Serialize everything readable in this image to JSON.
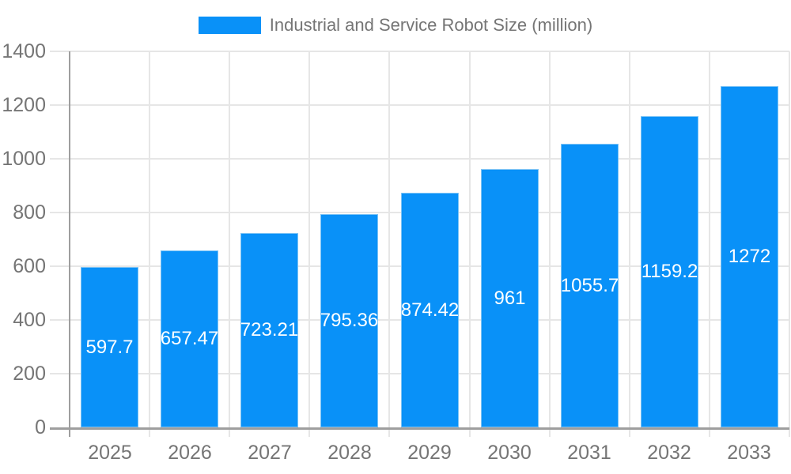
{
  "chart_data": {
    "type": "bar",
    "title": "Industrial and Service Robot Size (million)",
    "categories": [
      "2025",
      "2026",
      "2027",
      "2028",
      "2029",
      "2030",
      "2031",
      "2032",
      "2033"
    ],
    "values": [
      597.7,
      657.47,
      723.21,
      795.36,
      874.42,
      961,
      1055.7,
      1159.2,
      1272
    ],
    "xlabel": "",
    "ylabel": "",
    "ylim": [
      0,
      1400
    ],
    "yticks": [
      0,
      200,
      400,
      600,
      800,
      1000,
      1200,
      1400
    ],
    "grid": true,
    "legend_position": "top",
    "value_labels_inside_bars": true,
    "colors": {
      "bar": "#0991f8",
      "bar_edge": "#7cc3f5",
      "value_label": "#ffffff",
      "axis_label": "#757575",
      "legend_text": "#757575",
      "gridline": "#e6e6e6",
      "axis_line": "#9e9e9e",
      "background": "#ffffff"
    }
  }
}
